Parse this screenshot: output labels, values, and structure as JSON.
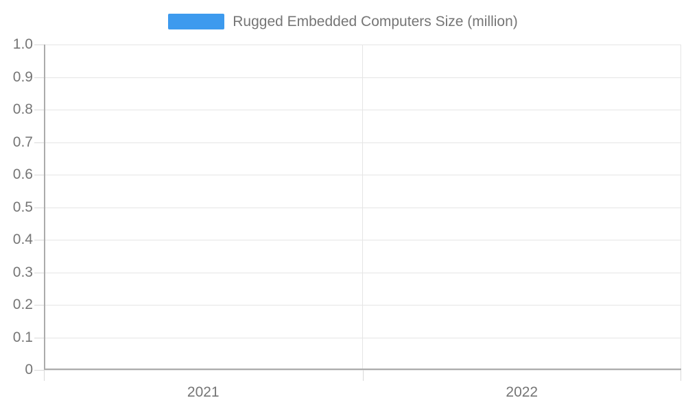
{
  "legend": {
    "series_label": "Rugged Embedded Computers Size (million)"
  },
  "colors": {
    "series": "#3D9AEE",
    "label_text": "#757575",
    "gridline": "#E5E5E5",
    "axis_line": "#ABABAB",
    "tick": "#D8D8D8",
    "background": "#FFFFFF"
  },
  "chart_data": {
    "type": "bar",
    "title": "Rugged Embedded Computers Size (million)",
    "categories": [
      "2021",
      "2022"
    ],
    "series": [
      {
        "name": "Rugged Embedded Computers Size (million)",
        "color": "#3D9AEE",
        "values": [
          null,
          null
        ]
      }
    ],
    "xlabel": "",
    "ylabel": "",
    "ylim": [
      0,
      1.0
    ],
    "y_ticks": [
      0,
      0.1,
      0.2,
      0.3,
      0.4,
      0.5,
      0.6,
      0.7,
      0.8,
      0.9,
      1.0
    ],
    "y_tick_labels": [
      "0",
      "0.1",
      "0.2",
      "0.3",
      "0.4",
      "0.5",
      "0.6",
      "0.7",
      "0.8",
      "0.9",
      "1.0"
    ],
    "grid": true,
    "legend_position": "top-center",
    "plot_area_empty": true
  }
}
